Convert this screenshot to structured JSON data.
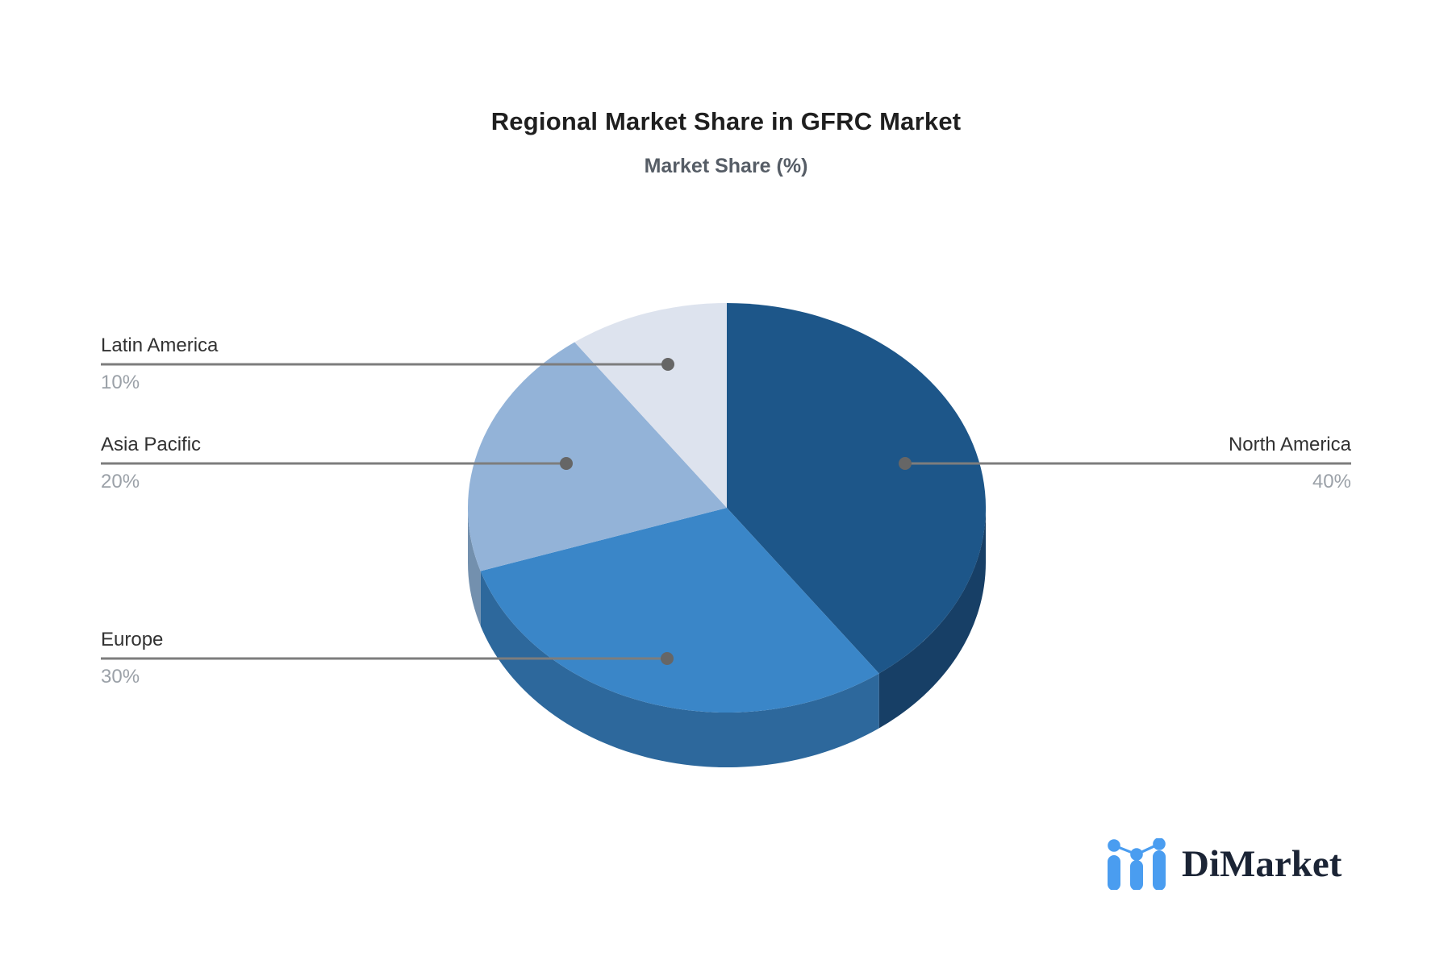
{
  "title": "Regional Market Share in GFRC Market",
  "subtitle": "Market Share (%)",
  "chart_data": {
    "type": "pie",
    "style": "3d",
    "title": "Regional Market Share in GFRC Market",
    "subtitle": "Market Share (%)",
    "unit": "%",
    "start_angle_deg": -90,
    "direction": "clockwise",
    "legend_position": "none",
    "slices": [
      {
        "label": "North America",
        "value": 40,
        "display": "40%",
        "color": "#1d5689",
        "side_color": "#173f66",
        "label_side": "right"
      },
      {
        "label": "Europe",
        "value": 30,
        "display": "30%",
        "color": "#3a86c8",
        "side_color": "#2d689c",
        "label_side": "left"
      },
      {
        "label": "Asia Pacific",
        "value": 20,
        "display": "20%",
        "color": "#93b3d8",
        "side_color": "#7390ae",
        "label_side": "left"
      },
      {
        "label": "Latin America",
        "value": 10,
        "display": "10%",
        "color": "#dde3ee",
        "side_color": "#b6c3d6",
        "label_side": "left"
      }
    ]
  },
  "colors": {
    "background": "#ffffff",
    "title_text": "#1f1f1f",
    "subtitle_text": "#565d66",
    "label_text": "#323232",
    "percent_text": "#9ba1a8",
    "connector_line": "#7d7d7d",
    "connector_dot": "#666666"
  },
  "branding": {
    "logo_text": "DiMarket",
    "logo_icon": "bar-chart-icon",
    "icon_color": "#4a9df0",
    "text_color": "#1b2435"
  }
}
